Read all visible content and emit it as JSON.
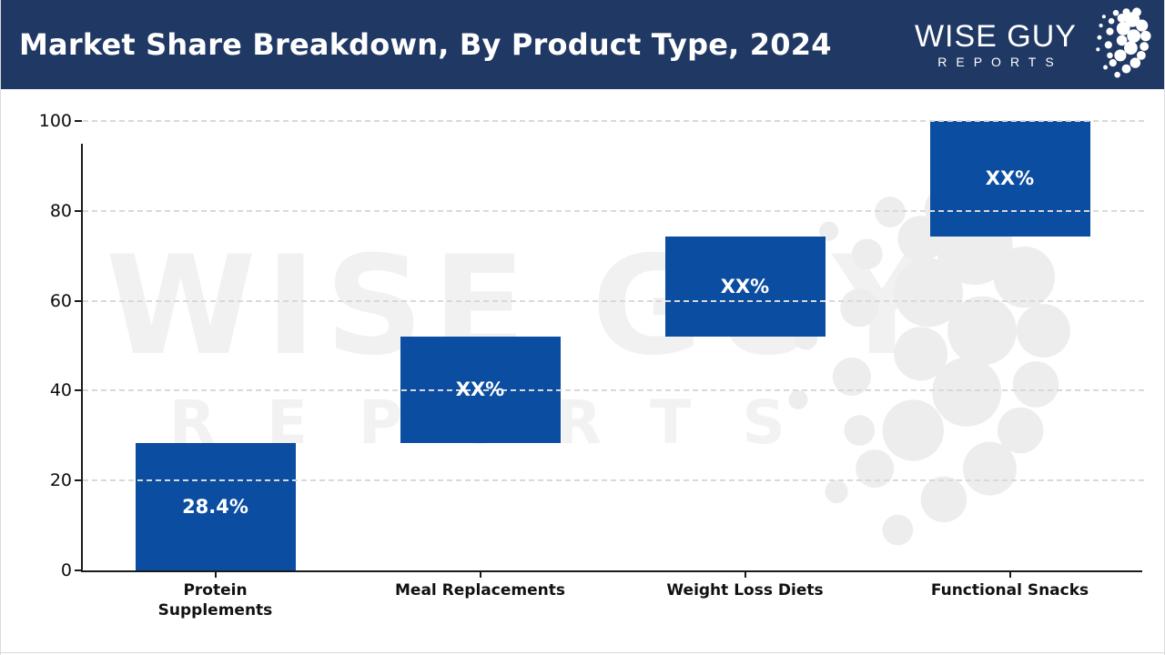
{
  "page": {
    "background": "#ffffff",
    "border_color": "#d9d9d9"
  },
  "header": {
    "background": "#203864",
    "title": "Market Share Breakdown, By Product Type, 2024",
    "logo": {
      "line1": "WISE GUY",
      "line2": "REPORTS",
      "color": "#ffffff"
    }
  },
  "watermark": {
    "line1": "WISE GUY",
    "line2": "REPORTS"
  },
  "chart_data": {
    "type": "bar",
    "subtype": "waterfall-floating-bars",
    "title": "Market Share Breakdown, By Product Type, 2024",
    "categories": [
      {
        "name": "Protein Supplements",
        "lines": [
          "Protein",
          "Supplements"
        ]
      },
      {
        "name": "Meal Replacements",
        "lines": [
          "Meal Replacements"
        ]
      },
      {
        "name": "Weight Loss Diets",
        "lines": [
          "Weight Loss Diets"
        ]
      },
      {
        "name": "Functional Snacks",
        "lines": [
          "Functional Snacks"
        ]
      }
    ],
    "segments": [
      {
        "start": 0,
        "end": 28.4,
        "display": "28.4%"
      },
      {
        "start": 28.4,
        "end": 52,
        "display": "XX%"
      },
      {
        "start": 52,
        "end": 74.3,
        "display": "XX%"
      },
      {
        "start": 74.3,
        "end": 100,
        "display": "XX%"
      }
    ],
    "ylim": [
      0,
      100
    ],
    "yticks": [
      0,
      20,
      40,
      60,
      80,
      100
    ],
    "xlabel": "",
    "ylabel": "",
    "grid": "horizontal-dashed",
    "bar_color": "#0b4da0",
    "bar_label_color": "#ffffff",
    "axis_color": "#1a1a1a",
    "gridline_color": "#d9d9d9",
    "legend": "none"
  }
}
